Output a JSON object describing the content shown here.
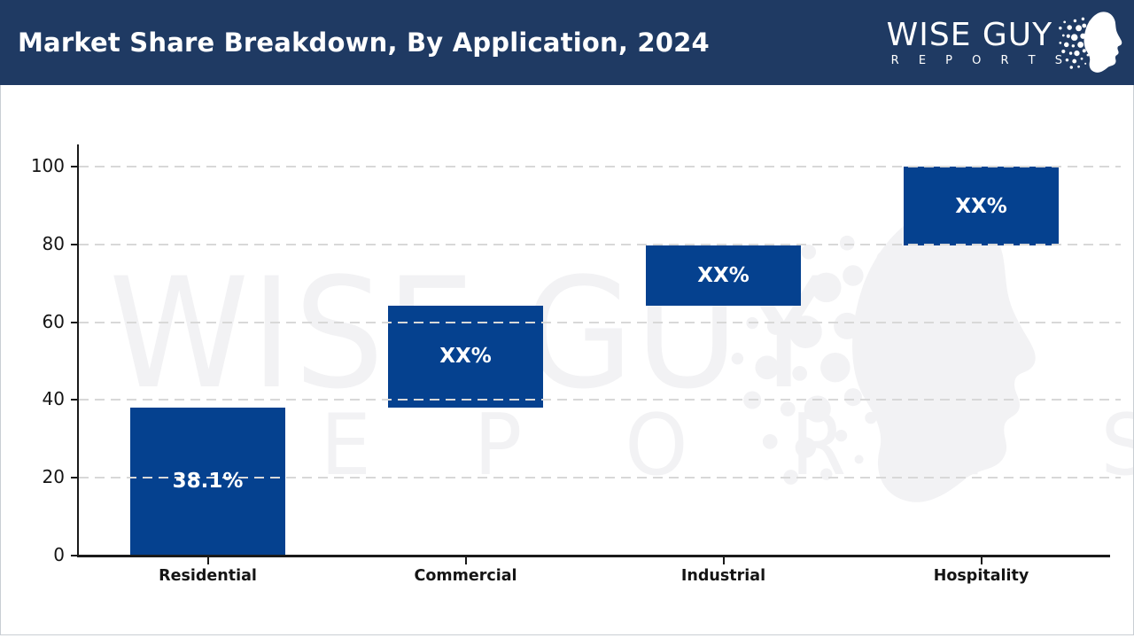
{
  "header": {
    "title": "Market Share Breakdown, By Application, 2024",
    "logo": {
      "line1": "WISE GUY",
      "line2": "R E P O R T S"
    }
  },
  "watermark": {
    "line1": "WISE GUY",
    "line2": "R E P O R T S"
  },
  "colors": {
    "header_bg": "#1f3a63",
    "bar": "#05418f",
    "bar_label": "#ffffff",
    "grid": "#d8d8d8",
    "axis": "#1a1a1a",
    "tick_label": "#151515",
    "watermark": "#f2f2f4",
    "frame": "#c9ced4"
  },
  "chart_data": {
    "type": "bar",
    "subtype": "floating-waterfall",
    "title": "Market Share Breakdown, By Application, 2024",
    "categories": [
      "Residential",
      "Commercial",
      "Industrial",
      "Hospitality"
    ],
    "segments": [
      {
        "category": "Residential",
        "start": 0,
        "end": 38.1,
        "label": "38.1%"
      },
      {
        "category": "Commercial",
        "start": 38.1,
        "end": 64.3,
        "label": "XX%"
      },
      {
        "category": "Industrial",
        "start": 64.3,
        "end": 79.7,
        "label": "XX%"
      },
      {
        "category": "Hospitality",
        "start": 79.7,
        "end": 100,
        "label": "XX%"
      }
    ],
    "ylim": [
      0,
      100
    ],
    "yticks": [
      0,
      20,
      40,
      60,
      80,
      100
    ],
    "xlabel": "",
    "ylabel": "",
    "grid": "dashed-horizontal",
    "legend": false
  }
}
